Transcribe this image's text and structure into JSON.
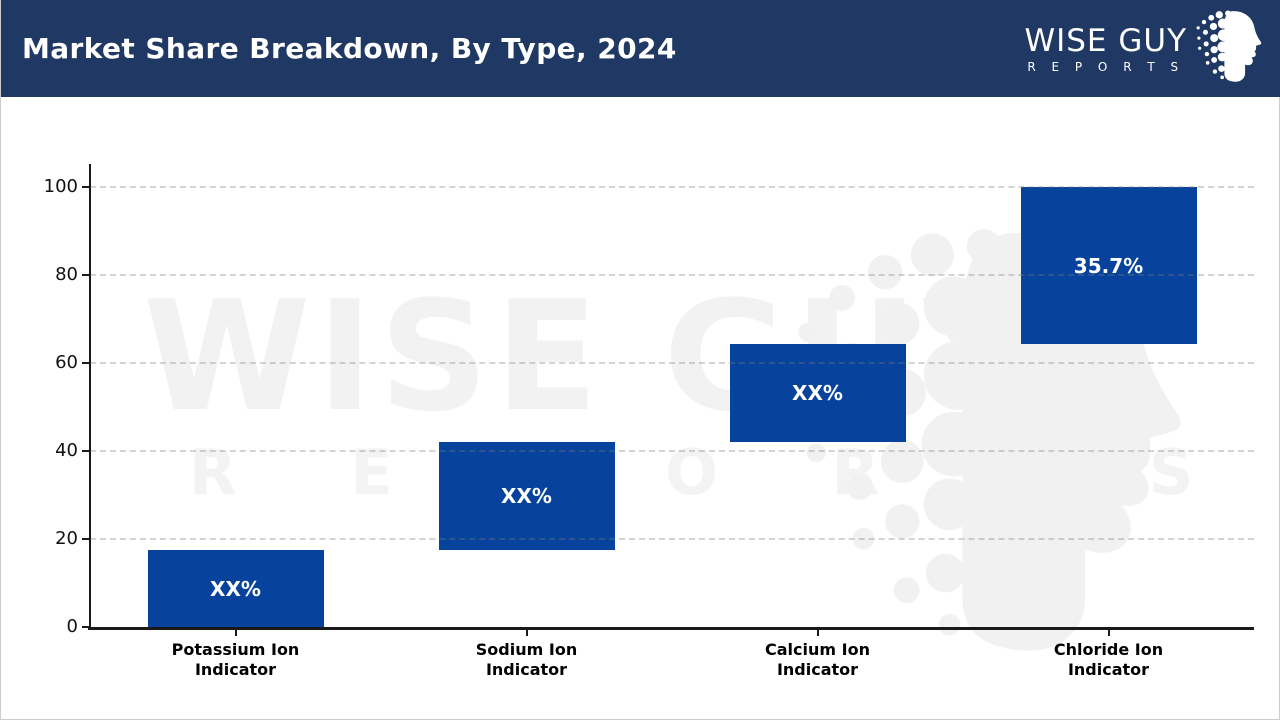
{
  "header": {
    "title": "Market Share Breakdown, By Type, 2024",
    "logo": {
      "brand_line1": "WISE GUY",
      "brand_line2": "R E P O R T S"
    }
  },
  "watermark": {
    "line1": "WISE GUY",
    "line2": "R E P O R T S"
  },
  "chart_data": {
    "type": "bar",
    "subtype": "floating-waterfall-bars",
    "title": "Market Share Breakdown, By Type, 2024",
    "categories": [
      [
        "Potassium Ion",
        "Indicator"
      ],
      [
        "Sodium Ion",
        "Indicator"
      ],
      [
        "Calcium Ion",
        "Indicator"
      ],
      [
        "Chloride Ion",
        "Indicator"
      ]
    ],
    "segments": [
      {
        "category": "Potassium Ion Indicator",
        "start": 0,
        "end": 17.5,
        "label": "XX%"
      },
      {
        "category": "Sodium Ion Indicator",
        "start": 17.5,
        "end": 42.0,
        "label": "XX%"
      },
      {
        "category": "Calcium Ion Indicator",
        "start": 42.0,
        "end": 64.3,
        "label": "XX%"
      },
      {
        "category": "Chloride Ion Indicator",
        "start": 64.3,
        "end": 100,
        "label": "35.7%"
      }
    ],
    "ylim": [
      0,
      100
    ],
    "yticks": [
      0,
      20,
      40,
      60,
      80,
      100
    ],
    "xlabel": "",
    "ylabel": "",
    "legend": null,
    "grid": "horizontal-dashed-drawn-over-bars",
    "bar_color": "#07439c",
    "bar_label_color": "#ffffff"
  },
  "colors": {
    "header_bg": "#1f3864",
    "title_text": "#ffffff",
    "bar": "#07439c",
    "axis": "#1a1a1a",
    "tick_label": "#111111",
    "gridline_on_white": "#d9d9d9",
    "watermark": "#f2f2f2",
    "page_border": "#cccccc"
  }
}
